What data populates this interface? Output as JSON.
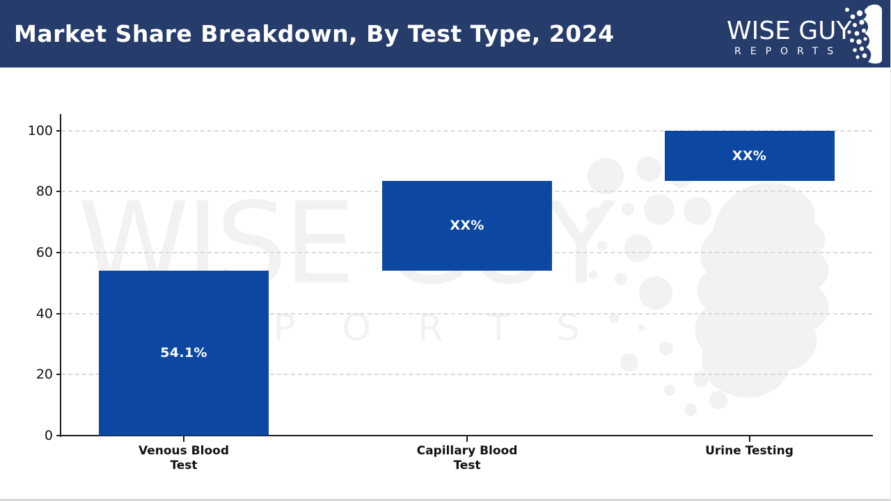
{
  "header": {
    "title": "Market Share Breakdown, By Test Type, 2024",
    "background_color": "#263C6B",
    "logo": {
      "line1": "WISE GUY",
      "line2": "REPORTS",
      "icon": "dotted-head-icon",
      "text_color": "#ffffff"
    }
  },
  "watermark": {
    "line1": "WISE GUY",
    "line2": "REPORTS",
    "icon": "dotted-head-watermark",
    "color": "#f2f2f2"
  },
  "chart_data": {
    "type": "bar",
    "subtype": "floating-stacked-percent",
    "title": "Market Share Breakdown, By Test Type, 2024",
    "categories": [
      "Venous Blood Test",
      "Capillary Blood Test",
      "Urine Testing"
    ],
    "series": [
      {
        "name": "Market Share",
        "segments": [
          {
            "category": "Venous Blood Test",
            "from": 0,
            "to": 54.1,
            "label": "54.1%"
          },
          {
            "category": "Capillary Blood Test",
            "from": 54.1,
            "to": 83.5,
            "label": "XX%"
          },
          {
            "category": "Urine Testing",
            "from": 83.5,
            "to": 100,
            "label": "XX%"
          }
        ]
      }
    ],
    "xlabel": "",
    "ylabel": "",
    "yticks": [
      0,
      20,
      40,
      60,
      80,
      100
    ],
    "ylim": [
      0,
      105
    ],
    "grid": "horizontal-dashed",
    "legend_position": "none",
    "bar_color": "#0C47A1",
    "bar_label_color": "#ffffff",
    "axis_color": "#1a1a1a",
    "gridline_color": "#d9d9d9"
  }
}
